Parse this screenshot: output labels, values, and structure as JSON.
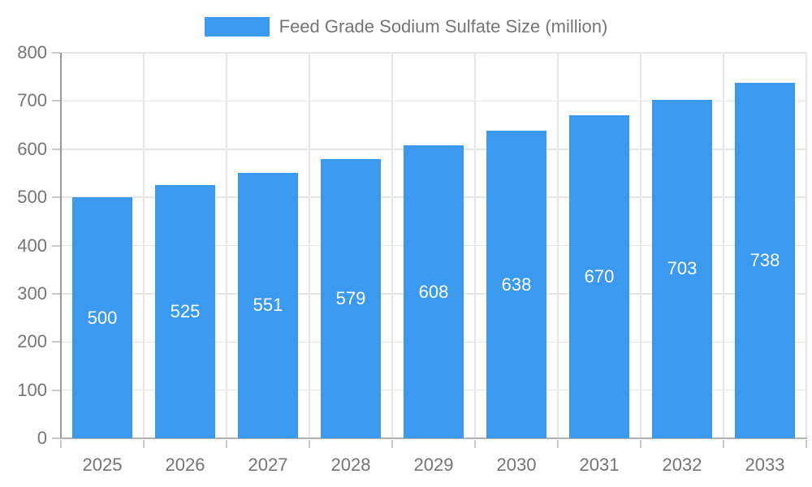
{
  "legend": {
    "label": "Feed Grade Sodium Sulfate Size (million)"
  },
  "chart_data": {
    "type": "bar",
    "title": "",
    "xlabel": "",
    "ylabel": "",
    "categories": [
      "2025",
      "2026",
      "2027",
      "2028",
      "2029",
      "2030",
      "2031",
      "2032",
      "2033"
    ],
    "values": [
      500,
      525,
      551,
      579,
      608,
      638,
      670,
      703,
      738
    ],
    "series_name": "Feed Grade Sodium Sulfate Size (million)",
    "ylim": [
      0,
      800
    ],
    "yticks": [
      0,
      100,
      200,
      300,
      400,
      500,
      600,
      700,
      800
    ],
    "grid": true,
    "legend_position": "top-center",
    "bar_label_position": "inside-center",
    "colors": {
      "bar": "#3B99F0",
      "bar_label": "#FFFFFF",
      "text": "#757575",
      "grid": "#E6E6E6",
      "x_axis_line": "#B0B0B0",
      "y_axis_line": "#999999",
      "tick": "#C9C9C9"
    }
  }
}
